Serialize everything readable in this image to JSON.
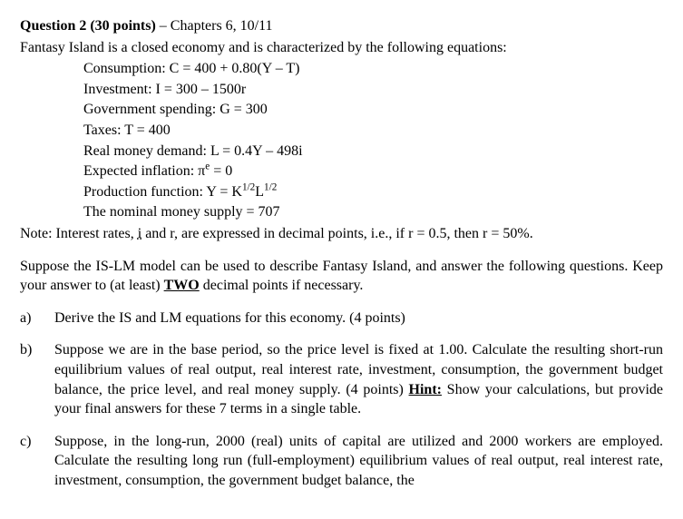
{
  "header": {
    "title_bold": "Question 2 (30 points)",
    "title_rest": " – Chapters 6, 10/11"
  },
  "intro": "Fantasy Island is a closed economy and is characterized by the following equations:",
  "equations": {
    "consumption": "Consumption: C = 400 + 0.80(Y – T)",
    "investment": "Investment: I = 300 – 1500r",
    "gov": "Government spending: G = 300",
    "taxes": "Taxes: T = 400",
    "money_demand": "Real money demand: L = 0.4Y – 498i",
    "inflation_pre": "Expected inflation: π",
    "inflation_sup": "e",
    "inflation_post": " = 0",
    "prod_pre": "Production function: Y = K",
    "prod_sup1": "1/2",
    "prod_mid": "L",
    "prod_sup2": "1/2",
    "money_supply": "The nominal money supply = 707"
  },
  "note": {
    "label": "Note:  ",
    "pre": "Interest rates, ",
    "i": "i",
    "mid": " and r, are expressed in decimal points, i.e., if r = 0.5, then r = 50%."
  },
  "instructions": {
    "pre": "Suppose the IS-LM model can be used to describe Fantasy Island, and answer the following questions.  Keep your answer to (at least) ",
    "two": "TWO",
    "post": " decimal points if necessary."
  },
  "parts": {
    "a": {
      "label": "a)",
      "text": "Derive the IS and LM equations for this economy. (4 points)"
    },
    "b": {
      "label": "b)",
      "pre": "Suppose we are in the base period, so the price level is fixed at 1.00. Calculate the resulting short-run equilibrium values of real output, real interest rate, investment, consumption, the government budget balance, the price level, and real money supply. (4 points) ",
      "hint": "Hint:",
      "post": " Show your calculations, but provide your final answers for these 7 terms in a single table."
    },
    "c": {
      "label": "c)",
      "text": "Suppose, in the long-run, 2000 (real) units of capital are utilized and 2000 workers are employed. Calculate the resulting long run (full-employment) equilibrium values of real output, real interest rate, investment, consumption, the government budget balance, the"
    }
  }
}
